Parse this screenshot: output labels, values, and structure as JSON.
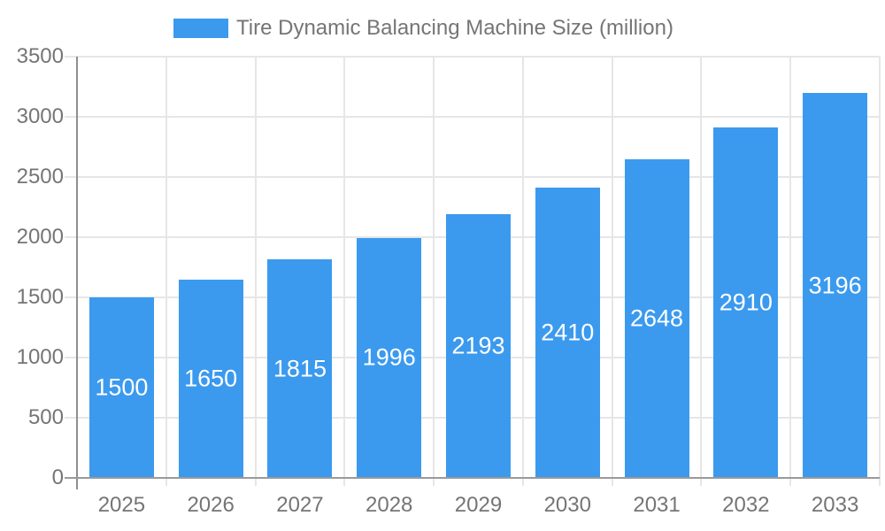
{
  "legend": {
    "label": "Tire Dynamic Balancing Machine Size (million)"
  },
  "chart_data": {
    "type": "bar",
    "title": "Tire Dynamic Balancing Machine Size (million)",
    "categories": [
      "2025",
      "2026",
      "2027",
      "2028",
      "2029",
      "2030",
      "2031",
      "2032",
      "2033"
    ],
    "values": [
      1500,
      1650,
      1815,
      1996,
      2193,
      2410,
      2648,
      2910,
      3196
    ],
    "xlabel": "",
    "ylabel": "",
    "ylim": [
      0,
      3500
    ],
    "yticks": [
      0,
      500,
      1000,
      1500,
      2000,
      2500,
      3000,
      3500
    ],
    "grid": true,
    "legend_position": "top",
    "colors": {
      "bar": "#3b9aee",
      "bar_value_label": "#ffffff",
      "axis_line": "#8f8f8f",
      "gridline": "#e6e6e6",
      "tick_label": "#757575"
    }
  }
}
